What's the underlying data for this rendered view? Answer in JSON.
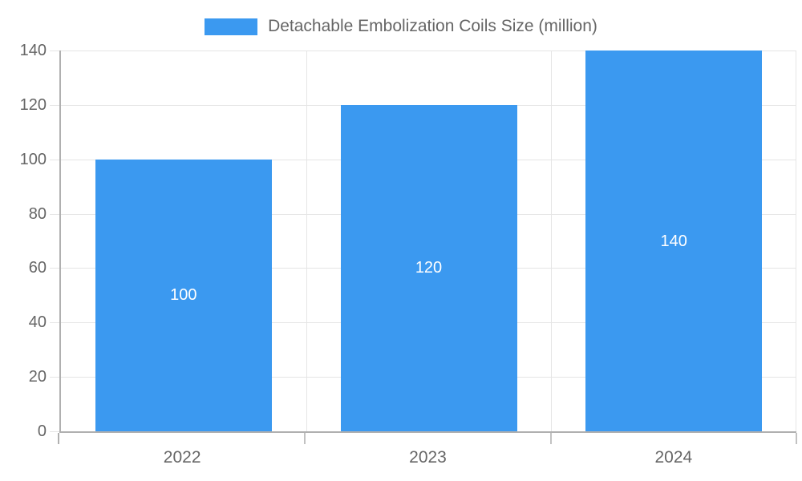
{
  "chart_data": {
    "type": "bar",
    "title": "Detachable Embolization Coils Size (million)",
    "categories": [
      "2022",
      "2023",
      "2024"
    ],
    "values": [
      100,
      120,
      140
    ],
    "xlabel": "",
    "ylabel": "",
    "ylim": [
      0,
      140
    ],
    "yticks": [
      0,
      20,
      40,
      60,
      80,
      100,
      120,
      140
    ],
    "grid": true,
    "legend_position": "top",
    "value_label_position": "inside-center",
    "colors": {
      "bar": "#3B99F0",
      "grid": "#e5e5e5",
      "axis": "#b0b0b0",
      "x_tick": "#c2c2c2",
      "label_text": "#666666",
      "value_text": "#ffffff"
    }
  }
}
